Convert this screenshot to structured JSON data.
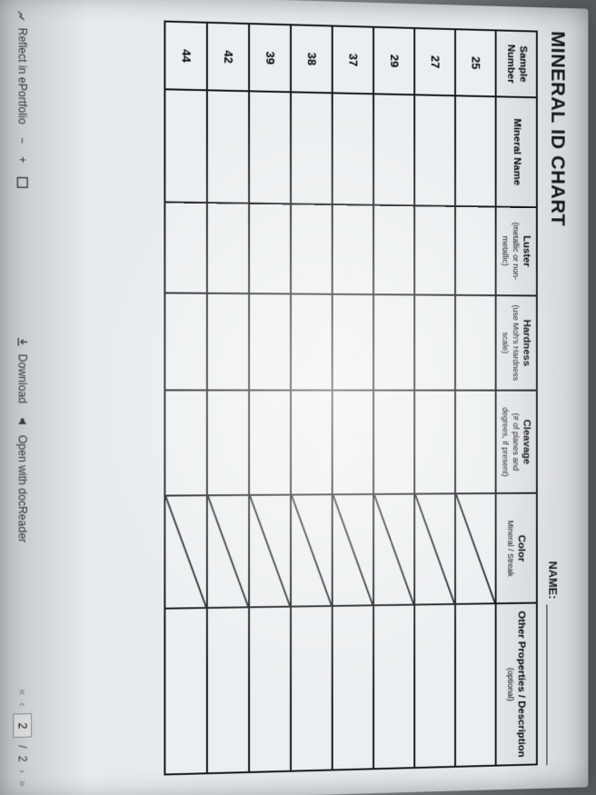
{
  "title": "MINERAL ID CHART",
  "name_label": "NAME:",
  "columns": [
    {
      "main": "Sample Number",
      "sub": "",
      "width": "9%"
    },
    {
      "main": "Mineral Name",
      "sub": "",
      "width": "15%"
    },
    {
      "main": "Luster",
      "sub": "(metallic or non-metallic)",
      "width": "12%"
    },
    {
      "main": "Hardness",
      "sub": "(use Moh's Hardness scale)",
      "width": "13%"
    },
    {
      "main": "Cleavage",
      "sub": "(# of planes and degrees, if present)",
      "width": "14%"
    },
    {
      "main": "Color",
      "sub": "Mineral / Streak",
      "width": "15%",
      "split": true
    },
    {
      "main": "Other Properties / Description",
      "sub": "(optional)",
      "width": "22%"
    }
  ],
  "rows": [
    "25",
    "27",
    "29",
    "37",
    "38",
    "39",
    "42",
    "44"
  ],
  "toolbar": {
    "reflect": "Reflect in ePortfolio",
    "download": "Download",
    "open": "Open with docReader",
    "page_current": "2",
    "page_total": "2",
    "page_sep": "/"
  },
  "colors": {
    "border": "#15171a",
    "page_bg": "#e8ebee",
    "text": "#15171a"
  }
}
